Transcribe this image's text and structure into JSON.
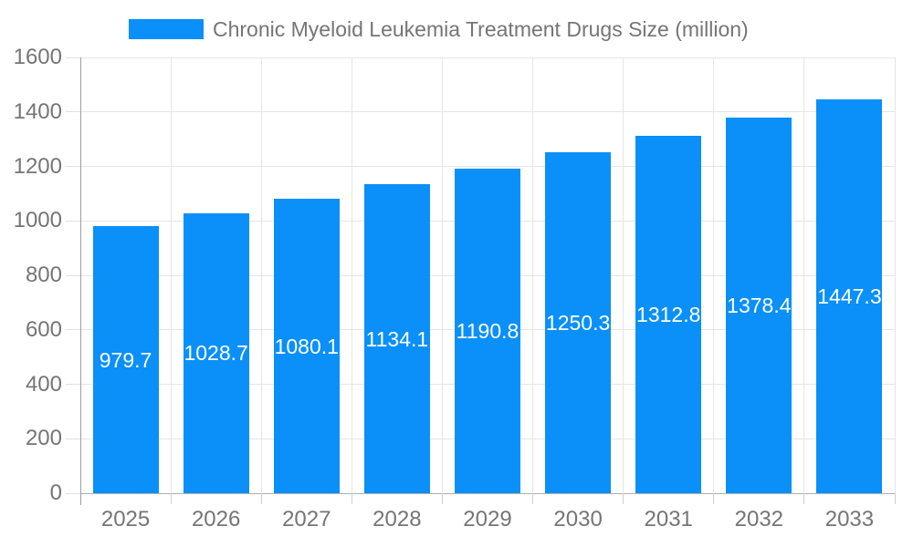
{
  "legend": {
    "label": "Chronic Myeloid Leukemia Treatment Drugs Size (million)"
  },
  "chart_data": {
    "type": "bar",
    "title": "Chronic Myeloid Leukemia Treatment Drugs Size (million)",
    "categories": [
      "2025",
      "2026",
      "2027",
      "2028",
      "2029",
      "2030",
      "2031",
      "2032",
      "2033"
    ],
    "series": [
      {
        "name": "Chronic Myeloid Leukemia Treatment Drugs Size (million)",
        "values": [
          979.7,
          1028.7,
          1080.1,
          1134.1,
          1190.8,
          1250.3,
          1312.8,
          1378.4,
          1447.3
        ]
      }
    ],
    "value_labels": [
      "979.7",
      "1028.7",
      "1080.1",
      "1134.1",
      "1190.8",
      "1250.3",
      "1312.8",
      "1378.4",
      "1447.3"
    ],
    "xlabel": "",
    "ylabel": "",
    "ylim": [
      0,
      1600
    ],
    "yticks": [
      0,
      200,
      400,
      600,
      800,
      1000,
      1200,
      1400,
      1600
    ],
    "ytick_labels": [
      "0",
      "200",
      "400",
      "600",
      "800",
      "1000",
      "1200",
      "1400",
      "1600"
    ],
    "grid": true,
    "legend_position": "top",
    "value_label_position": "center-of-bar",
    "bar_color": "#0a90f8",
    "value_label_color": "#ffffff",
    "axis_text_color": "#757575",
    "gridline_color": "#e6e6e6",
    "axis_line_color": "#9e9e9e"
  }
}
